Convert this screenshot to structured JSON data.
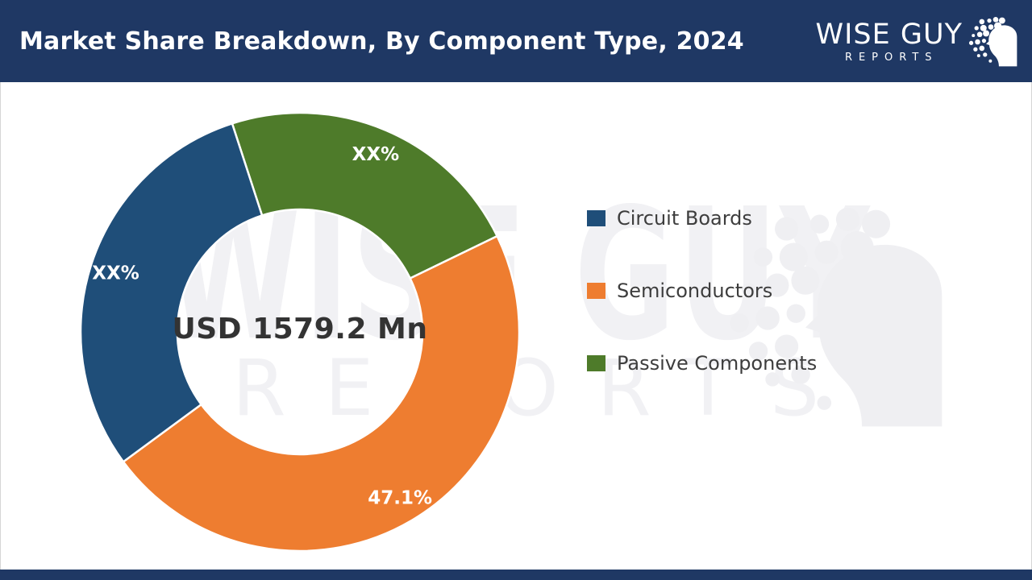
{
  "header": {
    "title": "Market Share Breakdown, By Component Type, 2024",
    "logo": {
      "line1": "WISE GUY",
      "line2": "REPORTS"
    }
  },
  "chart_data": {
    "type": "pie",
    "subtype": "donut",
    "title": "Market Share Breakdown, By Component Type, 2024",
    "center_label": "USD 1579.2 Mn",
    "units": "percent share of market",
    "start_angle_deg": -18,
    "direction": "clockwise",
    "legend_position": "right",
    "segments": [
      {
        "name": "Passive Components",
        "display_label": "XX%",
        "value_pct_est": 22.8,
        "color": "#4e7b2a"
      },
      {
        "name": "Semiconductors",
        "display_label": "47.1%",
        "value_pct_est": 47.1,
        "color": "#ee7d30"
      },
      {
        "name": "Circuit Boards",
        "display_label": "XX%",
        "value_pct_est": 30.1,
        "color": "#1f4e79"
      }
    ]
  },
  "legend": {
    "items": [
      {
        "label": "Circuit Boards",
        "color": "#1f4e79"
      },
      {
        "label": "Semiconductors",
        "color": "#ee7d30"
      },
      {
        "label": "Passive Components",
        "color": "#4e7b2a"
      }
    ]
  },
  "watermark": {
    "line1": "WISE GUY",
    "line2": "REPORTS"
  },
  "colors": {
    "header_bg": "#1f3864",
    "footer_bg": "#1f3864",
    "center_text": "#333333",
    "legend_text": "#3d3d3d",
    "slice_label_text": "#ffffff"
  }
}
